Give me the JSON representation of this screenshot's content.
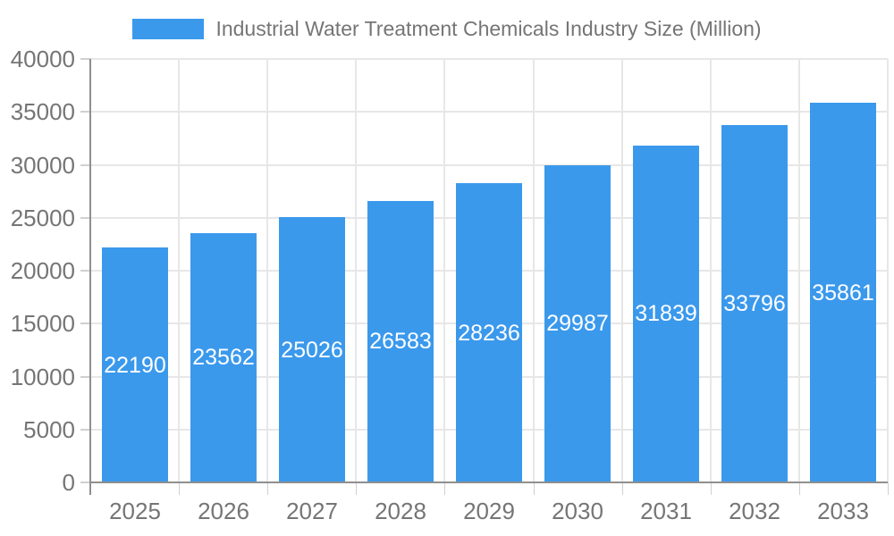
{
  "legend": {
    "label": "Industrial Water Treatment Chemicals Industry Size (Million)",
    "position": "top-center"
  },
  "chart_data": {
    "type": "bar",
    "title": "Industrial Water Treatment Chemicals Industry Size (Million)",
    "categories": [
      "2025",
      "2026",
      "2027",
      "2028",
      "2029",
      "2030",
      "2031",
      "2032",
      "2033"
    ],
    "values": [
      22190,
      23562,
      25026,
      26583,
      28236,
      29987,
      31839,
      33796,
      35861
    ],
    "value_labels": [
      "22190",
      "23562",
      "25026",
      "26583",
      "28236",
      "29987",
      "31839",
      "33796",
      "35861"
    ],
    "series_name": "Industrial Water Treatment Chemicals Industry Size (Million)",
    "xlabel": "",
    "ylabel": "",
    "ylim": [
      0,
      40000
    ],
    "yticks": [
      0,
      5000,
      10000,
      15000,
      20000,
      25000,
      30000,
      35000,
      40000
    ],
    "grid": true,
    "vertical_grid": true,
    "legend_position": "top",
    "bar_label_position": "inside-middle"
  },
  "style": {
    "bar_color": "#3B99EC",
    "bar_label_color": "#FFFFFF",
    "axis_label_color": "#757575",
    "gridline_color": "#E7E7E7",
    "axis_line_color": "#8F8F8F",
    "tick_color": "#D0D0D0",
    "background": "#FFFFFF"
  }
}
